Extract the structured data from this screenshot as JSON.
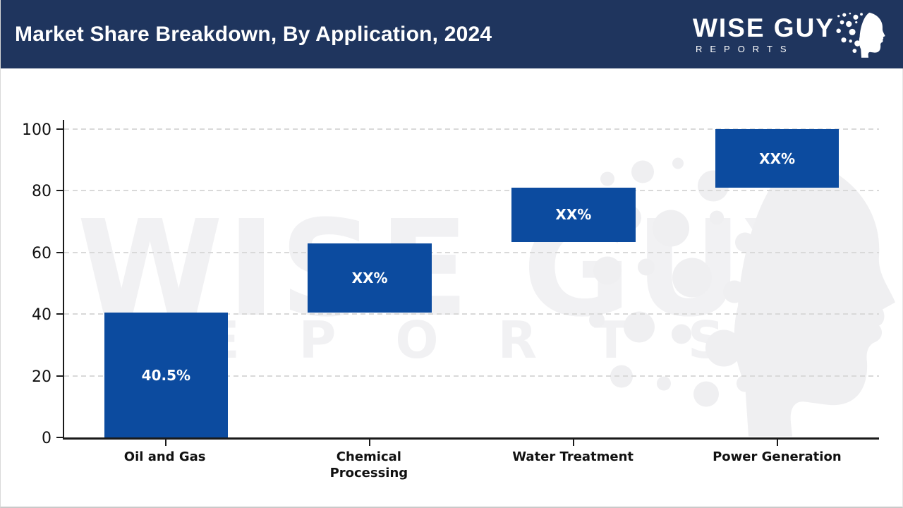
{
  "header": {
    "title": "Market Share Breakdown, By Application, 2024",
    "bg_color": "#1f355e",
    "logo": {
      "line1": "WISE GUY",
      "line2": "REPORTS"
    }
  },
  "watermark": {
    "line1": "WISE GUY",
    "line2": "REPORTS"
  },
  "chart_data": {
    "type": "bar",
    "subtype": "waterfall",
    "title": "Market Share Breakdown, By Application, 2024",
    "categories": [
      "Oil and Gas",
      "Chemical\nProcessing",
      "Water Treatment",
      "Power Generation"
    ],
    "segments": [
      {
        "category": "Oil and Gas",
        "start": 0,
        "end": 40.5,
        "label": "40.5%"
      },
      {
        "category": "Chemical Processing",
        "start": 40.5,
        "end": 63,
        "label": "XX%"
      },
      {
        "category": "Water Treatment",
        "start": 63.5,
        "end": 81,
        "label": "XX%"
      },
      {
        "category": "Power Generation",
        "start": 81,
        "end": 100,
        "label": "XX%"
      }
    ],
    "yticks": [
      0,
      20,
      40,
      60,
      80,
      100
    ],
    "ylim": [
      0,
      103.7
    ],
    "xlabel": "",
    "ylabel": "",
    "bar_color": "#0c4b9f",
    "grid": "horizontal-dashed",
    "legend": "none"
  }
}
